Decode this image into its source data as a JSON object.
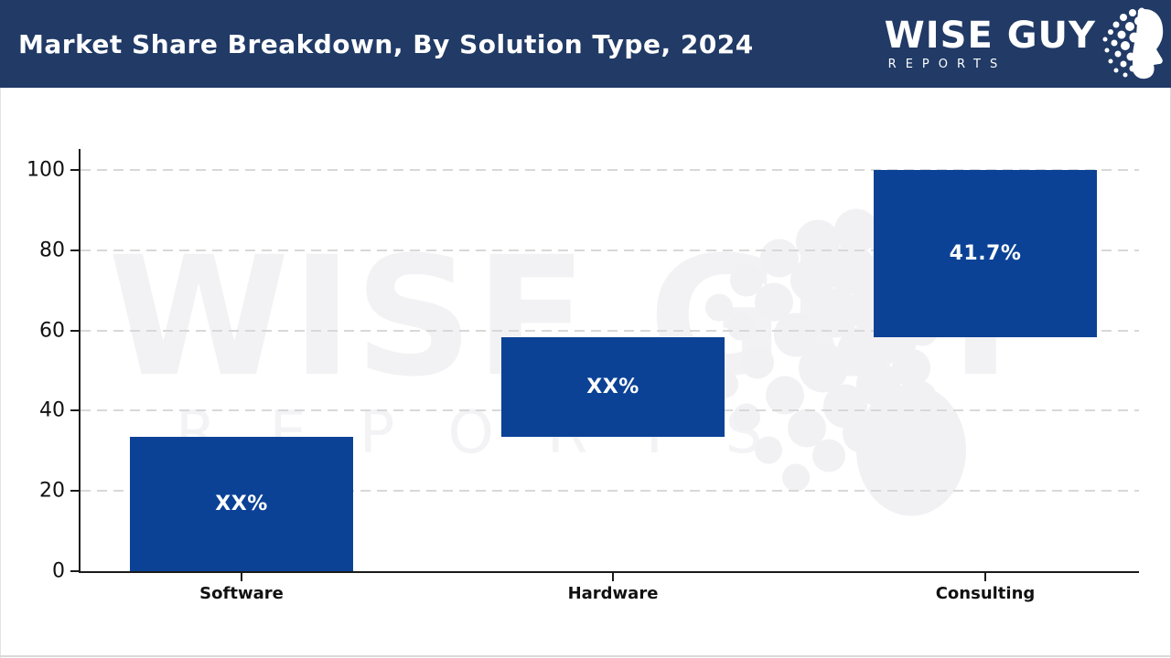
{
  "header": {
    "title": "Market Share Breakdown, By Solution Type, 2024",
    "logo": {
      "wordmark": "WISE GUY",
      "subtext": "REPORTS"
    }
  },
  "watermark": {
    "wordmark": "WISE GUY",
    "subtext": "REPORTS"
  },
  "chart_data": {
    "type": "waterfall",
    "title": "Market Share Breakdown, By Solution Type, 2024",
    "categories": [
      "Software",
      "Hardware",
      "Consulting"
    ],
    "segments": [
      {
        "category": "Software",
        "start": 0,
        "end": 33.5,
        "value": 33.5,
        "label": "XX%"
      },
      {
        "category": "Hardware",
        "start": 33.5,
        "end": 58.3,
        "value": 24.8,
        "label": "XX%"
      },
      {
        "category": "Consulting",
        "start": 58.3,
        "end": 100,
        "value": 41.7,
        "label": "41.7%"
      }
    ],
    "y_ticks": [
      0,
      20,
      40,
      60,
      80,
      100
    ],
    "ylim": [
      0,
      105
    ],
    "xlabel": "",
    "ylabel": "",
    "grid": "horizontal-dashed",
    "legend": "none",
    "bar_color": "#0b4296"
  },
  "colors": {
    "header_bg": "#213a66",
    "bar": "#0b4296",
    "grid": "#d8d8d8",
    "axis": "#1a1a1a",
    "watermark": "#f2f2f4",
    "label_on_bar": "#ffffff"
  }
}
